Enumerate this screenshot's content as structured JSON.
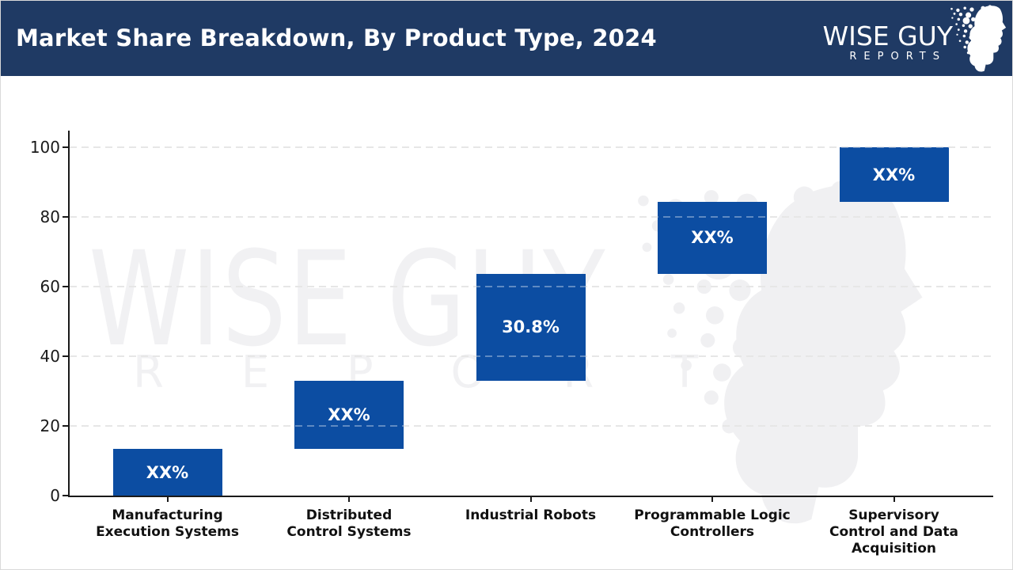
{
  "header": {
    "title": "Market Share Breakdown, By Product Type, 2024",
    "bg_color": "#1f3a64",
    "logo": {
      "brand": "WISE GUY",
      "sub": "REPORTS"
    }
  },
  "watermark": {
    "brand": "WISE GUY",
    "sub": "R E P O R T S"
  },
  "chart_data": {
    "type": "bar",
    "subtype": "floating-waterfall",
    "title": "Market Share Breakdown, By Product Type, 2024",
    "ylim": [
      0,
      100
    ],
    "yticks": [
      0,
      20,
      40,
      60,
      80,
      100
    ],
    "grid": "horizontal-dashed",
    "legend": "none",
    "bar_color": "#0c4da2",
    "value_label_color": "#ffffff",
    "bars": [
      {
        "category": "Manufacturing Execution Systems",
        "category_lines": [
          "Manufacturing",
          "Execution Systems"
        ],
        "start": 0,
        "end": 13.3,
        "label": "XX%"
      },
      {
        "category": "Distributed Control Systems",
        "category_lines": [
          "Distributed",
          "Control Systems"
        ],
        "start": 13.3,
        "end": 32.9,
        "label": "XX%"
      },
      {
        "category": "Industrial Robots",
        "category_lines": [
          "Industrial Robots"
        ],
        "start": 32.9,
        "end": 63.7,
        "label": "30.8%",
        "value": 30.8
      },
      {
        "category": "Programmable Logic Controllers",
        "category_lines": [
          "Programmable Logic",
          "Controllers"
        ],
        "start": 63.7,
        "end": 84.3,
        "label": "XX%"
      },
      {
        "category": "Supervisory Control and Data Acquisition",
        "category_lines": [
          "Supervisory",
          "Control and Data",
          "Acquisition"
        ],
        "start": 84.3,
        "end": 100,
        "label": "XX%"
      }
    ]
  }
}
